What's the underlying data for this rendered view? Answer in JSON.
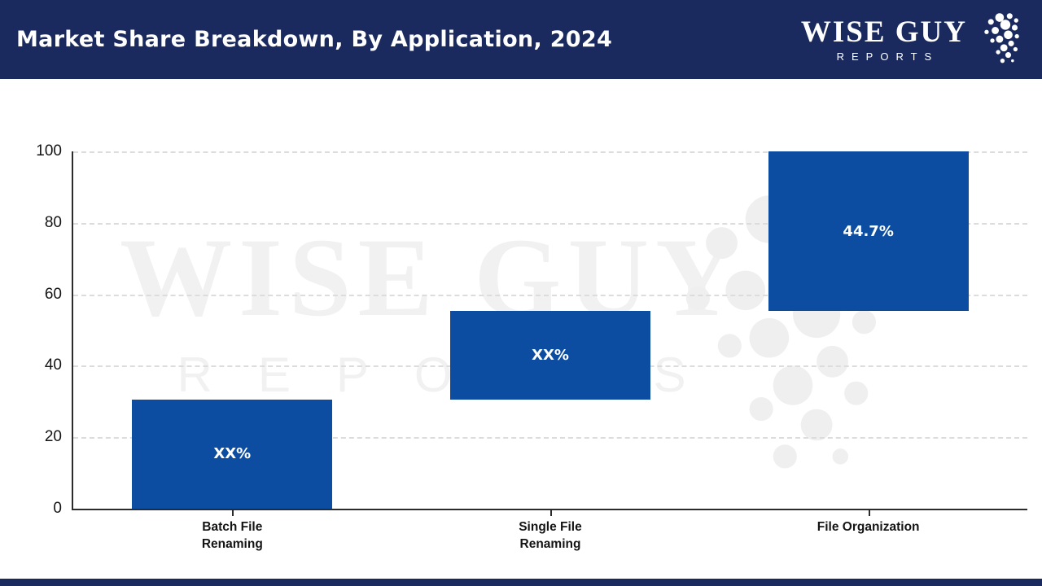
{
  "header": {
    "title": "Market Share Breakdown, By Application, 2024",
    "bg_color": "#1b2a5e",
    "logo": {
      "line1": "WISE GUY",
      "line2": "REPORTS"
    }
  },
  "footer": {
    "bg_color": "#1b2a5e"
  },
  "watermark": {
    "line1": "WISE GUY",
    "line2": "REPORTS"
  },
  "chart_data": {
    "type": "bar",
    "variant": "floating-waterfall",
    "title": "Market Share Breakdown, By Application, 2024",
    "categories": [
      "Batch File Renaming",
      "Single File Renaming",
      "File Organization"
    ],
    "bars": [
      {
        "label_lines": [
          "Batch File",
          "Renaming"
        ],
        "range": [
          0,
          30.6
        ],
        "value": 30.6,
        "value_label": "XX%"
      },
      {
        "label_lines": [
          "Single File",
          "Renaming"
        ],
        "range": [
          30.6,
          55.3
        ],
        "value": 24.7,
        "value_label": "XX%"
      },
      {
        "label_lines": [
          "File Organization"
        ],
        "range": [
          55.3,
          100
        ],
        "value": 44.7,
        "value_label": "44.7%"
      }
    ],
    "cumulative": [
      30.6,
      55.3,
      100
    ],
    "ylim": [
      0,
      100
    ],
    "yticks": [
      0,
      20,
      40,
      60,
      80,
      100
    ],
    "grid": true,
    "grid_style": "dashed-horizontal",
    "bar_color": "#0d4da1",
    "value_label_color": "#ffffff",
    "legend": false
  }
}
